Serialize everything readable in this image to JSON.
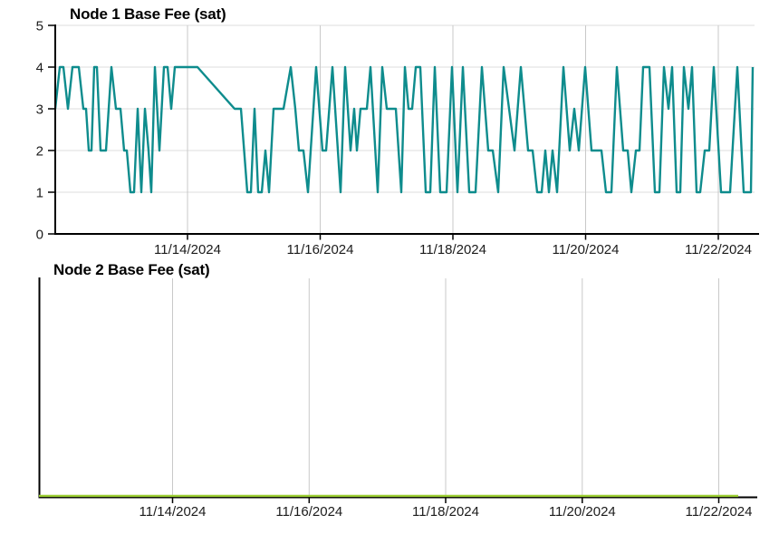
{
  "chart_data": [
    {
      "type": "line",
      "title": "Node 1 Base Fee (sat)",
      "ylabel": "",
      "xlabel": "",
      "ylim": [
        0,
        5
      ],
      "y_tick_labels": [
        "0",
        "1",
        "2",
        "3",
        "4",
        "5"
      ],
      "x_tick_labels": [
        "11/14/2024",
        "11/16/2024",
        "11/18/2024",
        "11/20/2024",
        "11/22/2024"
      ],
      "grid": "horizontal+vertical",
      "legend_position": "none",
      "series": [
        {
          "name": "Node 1 Base Fee",
          "color": "#0e8c8d",
          "unit": "sat",
          "points": [
            [
              61,
              3
            ],
            [
              66,
              4
            ],
            [
              70,
              4
            ],
            [
              75,
              3
            ],
            [
              80,
              4
            ],
            [
              87,
              4
            ],
            [
              92,
              3
            ],
            [
              95,
              3
            ],
            [
              98,
              2
            ],
            [
              101,
              2
            ],
            [
              104,
              4
            ],
            [
              107,
              4
            ],
            [
              111,
              2
            ],
            [
              117,
              2
            ],
            [
              123,
              4
            ],
            [
              128,
              3
            ],
            [
              133,
              3
            ],
            [
              137,
              2
            ],
            [
              140,
              2
            ],
            [
              144,
              1
            ],
            [
              148,
              1
            ],
            [
              152,
              3
            ],
            [
              156,
              1
            ],
            [
              160,
              3
            ],
            [
              164,
              2
            ],
            [
              167,
              1
            ],
            [
              171,
              4
            ],
            [
              176,
              2
            ],
            [
              181,
              4
            ],
            [
              185,
              4
            ],
            [
              189,
              3
            ],
            [
              193,
              4
            ],
            [
              197,
              4
            ],
            [
              218,
              4
            ],
            [
              259,
              3
            ],
            [
              266,
              3
            ],
            [
              273,
              1
            ],
            [
              277,
              1
            ],
            [
              281,
              3
            ],
            [
              285,
              1
            ],
            [
              289,
              1
            ],
            [
              293,
              2
            ],
            [
              297,
              1
            ],
            [
              302,
              3
            ],
            [
              313,
              3
            ],
            [
              321,
              4
            ],
            [
              326,
              3
            ],
            [
              330,
              2
            ],
            [
              335,
              2
            ],
            [
              340,
              1
            ],
            [
              349,
              4
            ],
            [
              356,
              2
            ],
            [
              360,
              2
            ],
            [
              367,
              4
            ],
            [
              376,
              1
            ],
            [
              381,
              4
            ],
            [
              387,
              2
            ],
            [
              391,
              3
            ],
            [
              394,
              2
            ],
            [
              398,
              3
            ],
            [
              405,
              3
            ],
            [
              409,
              4
            ],
            [
              417,
              1
            ],
            [
              422,
              4
            ],
            [
              427,
              3
            ],
            [
              437,
              3
            ],
            [
              443,
              1
            ],
            [
              447,
              4
            ],
            [
              451,
              3
            ],
            [
              455,
              3
            ],
            [
              459,
              4
            ],
            [
              464,
              4
            ],
            [
              470,
              1
            ],
            [
              475,
              1
            ],
            [
              480,
              4
            ],
            [
              486,
              1
            ],
            [
              493,
              1
            ],
            [
              499,
              4
            ],
            [
              505,
              1
            ],
            [
              511,
              4
            ],
            [
              518,
              1
            ],
            [
              525,
              1
            ],
            [
              532,
              4
            ],
            [
              539,
              2
            ],
            [
              544,
              2
            ],
            [
              550,
              1
            ],
            [
              556,
              4
            ],
            [
              562,
              3
            ],
            [
              568,
              2
            ],
            [
              575,
              4
            ],
            [
              583,
              2
            ],
            [
              588,
              2
            ],
            [
              593,
              1
            ],
            [
              598,
              1
            ],
            [
              602,
              2
            ],
            [
              606,
              1
            ],
            [
              610,
              2
            ],
            [
              615,
              1
            ],
            [
              622,
              4
            ],
            [
              629,
              2
            ],
            [
              634,
              3
            ],
            [
              639,
              2
            ],
            [
              646,
              4
            ],
            [
              653,
              2
            ],
            [
              658,
              2
            ],
            [
              664,
              2
            ],
            [
              669,
              1
            ],
            [
              675,
              1
            ],
            [
              681,
              4
            ],
            [
              688,
              2
            ],
            [
              693,
              2
            ],
            [
              697,
              1
            ],
            [
              702,
              2
            ],
            [
              706,
              2
            ],
            [
              710,
              4
            ],
            [
              717,
              4
            ],
            [
              723,
              1
            ],
            [
              728,
              1
            ],
            [
              733,
              4
            ],
            [
              738,
              3
            ],
            [
              742,
              4
            ],
            [
              747,
              1
            ],
            [
              751,
              1
            ],
            [
              755,
              4
            ],
            [
              760,
              3
            ],
            [
              764,
              4
            ],
            [
              769,
              1
            ],
            [
              773,
              1
            ],
            [
              778,
              2
            ],
            [
              783,
              2
            ],
            [
              788,
              4
            ],
            [
              796,
              1
            ],
            [
              806,
              1
            ],
            [
              814,
              4
            ],
            [
              821,
              1
            ],
            [
              829,
              1
            ],
            [
              831,
              4
            ]
          ]
        }
      ]
    },
    {
      "type": "line",
      "title": "Node 2 Base Fee (sat)",
      "ylabel": "",
      "xlabel": "",
      "y_tick_labels": [],
      "x_tick_labels": [
        "11/14/2024",
        "11/16/2024",
        "11/18/2024",
        "11/20/2024",
        "11/22/2024"
      ],
      "grid": "vertical",
      "legend_position": "none",
      "series": [
        {
          "name": "Node 2 Base Fee",
          "color": "#9acd32",
          "unit": "sat",
          "note": "flat line at zero along the x-axis",
          "points": [
            [
              43,
              0
            ],
            [
              815,
              0
            ]
          ]
        }
      ]
    }
  ],
  "colors": {
    "node1_line": "#0e8c8d",
    "node2_line": "#9acd32",
    "axis": "#000000",
    "h_grid": "#dcdcdc",
    "v_grid": "#c9c9c9",
    "tick_label": "#1c1c1c"
  }
}
